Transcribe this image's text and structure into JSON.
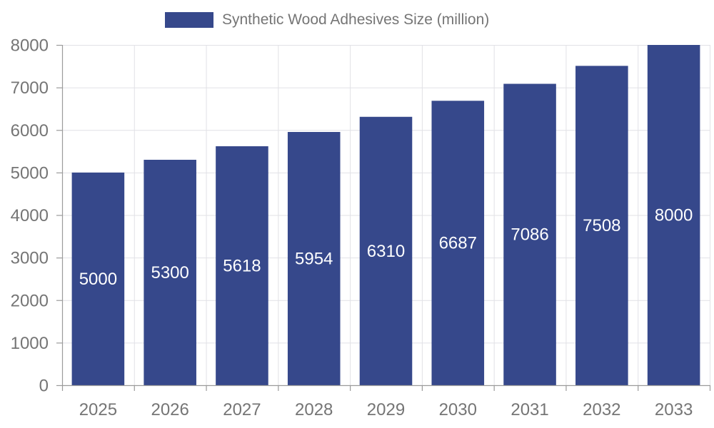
{
  "chart_data": {
    "type": "bar",
    "title": "",
    "legend": "Synthetic Wood Adhesives Size (million)",
    "categories": [
      "2025",
      "2026",
      "2027",
      "2028",
      "2029",
      "2030",
      "2031",
      "2032",
      "2033"
    ],
    "values": [
      5000,
      5300,
      5618,
      5954,
      6310,
      6687,
      7086,
      7508,
      8000
    ],
    "xlabel": "",
    "ylabel": "",
    "ylim": [
      0,
      8000
    ],
    "ytick_step": 1000,
    "ytick_labels": [
      "0",
      "1000",
      "2000",
      "3000",
      "4000",
      "5000",
      "6000",
      "7000",
      "8000"
    ],
    "grid": "on",
    "legend_position": "top-center",
    "bar_value_labels": [
      "5000",
      "5300",
      "5618",
      "5954",
      "6310",
      "6687",
      "7086",
      "7508",
      "8000"
    ],
    "colors": {
      "bar": "#36488B",
      "gridline": "#e1e1e6",
      "axis_line": "#9b9b9b",
      "tick_label": "#757575",
      "bar_label": "#ffffff",
      "legend_text": "#757575",
      "background": "#ffffff"
    }
  }
}
